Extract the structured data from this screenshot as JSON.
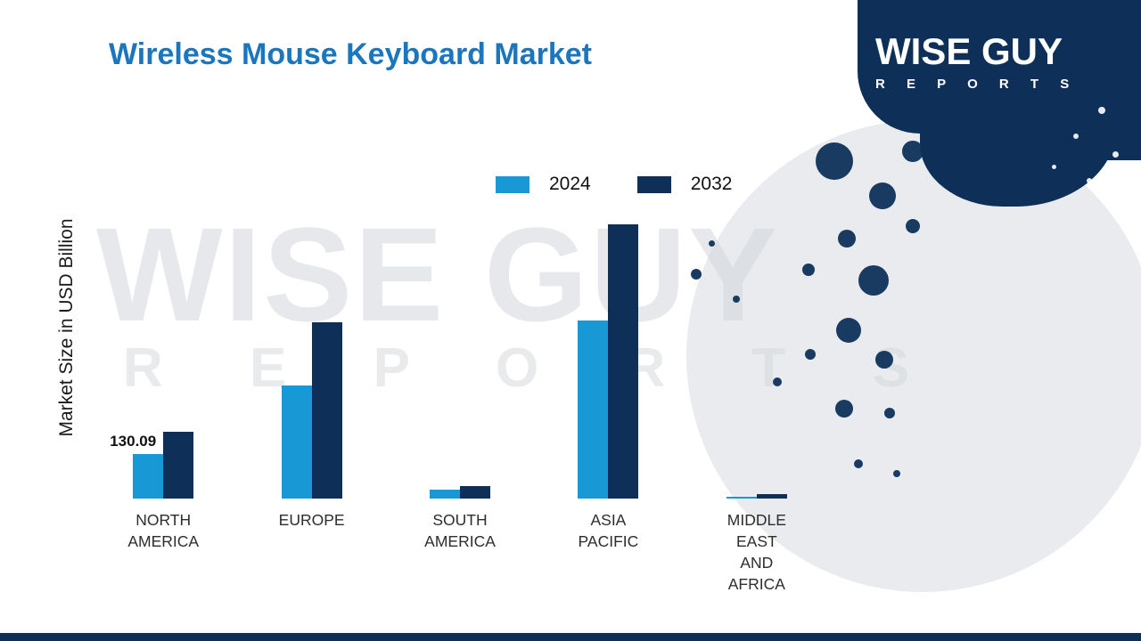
{
  "page": {
    "title": "Wireless Mouse Keyboard Market"
  },
  "logo": {
    "line1": "WISE GUY",
    "line2": "R E P O R T S"
  },
  "watermark": {
    "line1": "WISE GUY",
    "line2": "R E P O R T S"
  },
  "colors": {
    "accent_blue": "#1b76bd",
    "series_2024": "#1899d6",
    "series_2032": "#0e3058"
  },
  "chart_data": {
    "type": "bar",
    "title": "Wireless Mouse Keyboard Market",
    "ylabel": "Market Size in USD Billion",
    "xlabel": "",
    "ylim": [
      0,
      800
    ],
    "grid": false,
    "legend_position": "top-center",
    "categories": [
      "NORTH AMERICA",
      "EUROPE",
      "SOUTH AMERICA",
      "ASIA PACIFIC",
      "MIDDLE EAST AND AFRICA"
    ],
    "categories_lines": [
      [
        "NORTH",
        "AMERICA"
      ],
      [
        "EUROPE"
      ],
      [
        "SOUTH",
        "AMERICA"
      ],
      [
        "ASIA",
        "PACIFIC"
      ],
      [
        "MIDDLE",
        "EAST",
        "AND",
        "AFRICA"
      ]
    ],
    "series": [
      {
        "name": "2024",
        "color": "#1899d6",
        "values": [
          130.09,
          330,
          25,
          520,
          6
        ]
      },
      {
        "name": "2032",
        "color": "#0e3058",
        "values": [
          196,
          515,
          36,
          800,
          12
        ]
      }
    ],
    "annotations": [
      {
        "series": "2024",
        "category": "NORTH AMERICA",
        "text": "130.09"
      }
    ]
  }
}
